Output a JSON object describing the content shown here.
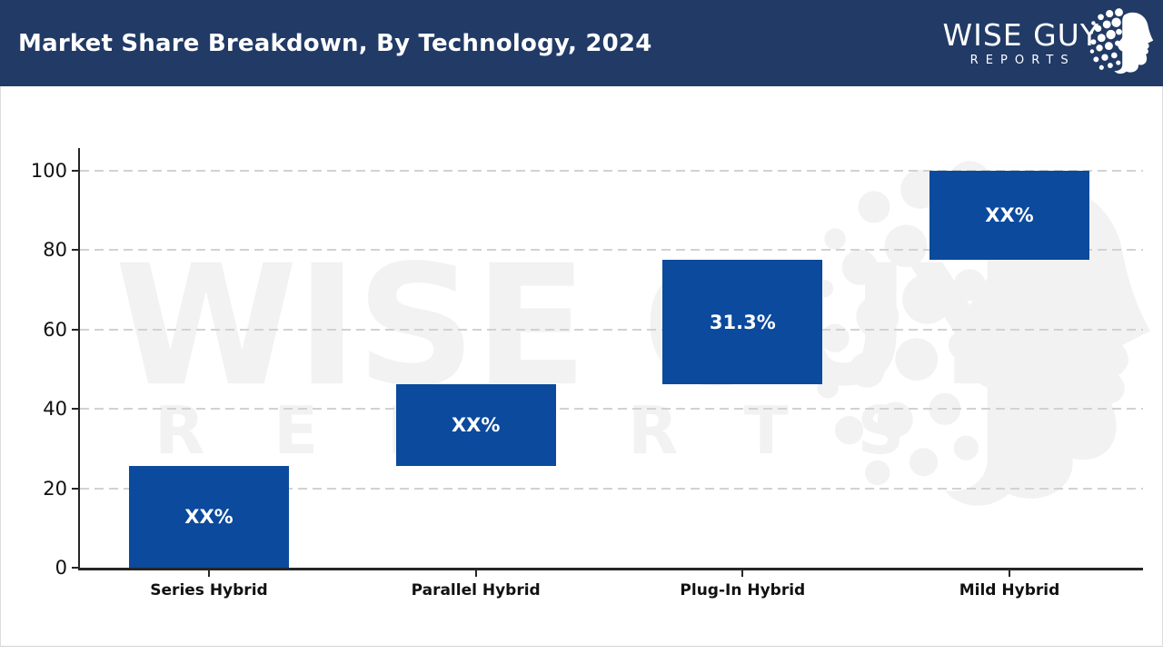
{
  "header": {
    "title": "Market Share Breakdown, By Technology, 2024",
    "logo": {
      "name": "WISE GUY",
      "sub": "REPORTS"
    },
    "bg_color": "#213a66"
  },
  "watermark": {
    "line1": "WISE GUY",
    "line2": "REPORTS"
  },
  "chart_data": {
    "type": "bar",
    "variant": "waterfall-floating-bars",
    "title": "Market Share Breakdown, By Technology, 2024",
    "categories": [
      "Series Hybrid",
      "Parallel Hybrid",
      "Plug-In Hybrid",
      "Mild Hybrid"
    ],
    "series": [
      {
        "name": "Market share (%)",
        "segments": [
          {
            "category": "Series Hybrid",
            "start": 0,
            "end": 25.6,
            "label": "XX%"
          },
          {
            "category": "Parallel Hybrid",
            "start": 25.6,
            "end": 46.2,
            "label": "XX%"
          },
          {
            "category": "Plug-In Hybrid",
            "start": 46.2,
            "end": 77.5,
            "label": "31.3%"
          },
          {
            "category": "Mild Hybrid",
            "start": 77.5,
            "end": 100,
            "label": "XX%"
          }
        ]
      }
    ],
    "xlabel": "",
    "ylabel": "",
    "ylim": [
      0,
      100
    ],
    "yticks": [
      0,
      20,
      40,
      60,
      80,
      100
    ],
    "grid": "horizontal-dashed",
    "legend": "none",
    "bar_color": "#0b4a9c",
    "grid_color": "#d2d2d2",
    "axis_color": "#262626"
  }
}
